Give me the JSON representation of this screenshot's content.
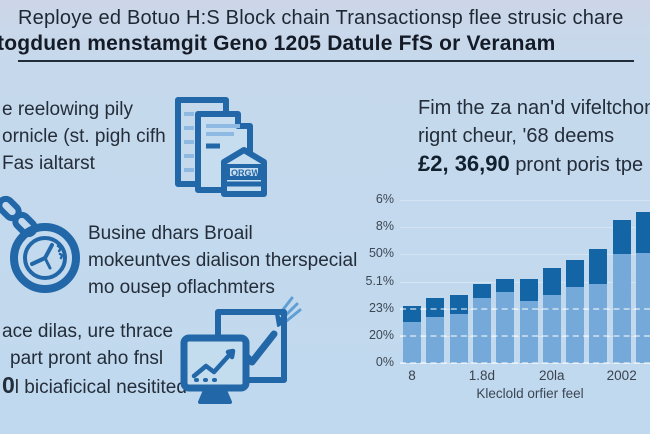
{
  "header": {
    "line1": "Reploye ed Botuo H:S Block chain Transactionsp flee strusic chare",
    "line2": "togduen menstamgit Geno 1205 Datule FfS or Veranam"
  },
  "left": {
    "block1": {
      "lines": [
        "e reelowing pily",
        "ornicle (st. pigh cifh",
        "Fas ialtarst"
      ]
    },
    "block2": {
      "lines": [
        "Busine dhars Broail",
        "mokeuntves dialison therspecial",
        "mo ousep oflachmters"
      ]
    },
    "block3": {
      "line1": "ace dilas, ure thrace",
      "line2": "part pront aho fnsl",
      "line3_bold": "0",
      "line3_rest": "l biciaficical nesitited"
    }
  },
  "right": {
    "intro": {
      "line1": "Fim the za nan'd vifeltchon",
      "line2": "rignt cheur, '68 deems",
      "amount": "£2, 36,90",
      "line3_rest": "pront poris tpe"
    }
  },
  "icons": {
    "document": "document-stack-icon",
    "document_label": "ORGW",
    "magnifier": "magnifier-clock-icon",
    "monitor": "monitor-growth-check-icon"
  },
  "colors": {
    "icon_blue": "#2267a7",
    "icon_blue_light": "#7fb0dd",
    "bar_light": "#74a9d9",
    "bar_dark": "#1465a6",
    "background": "#c0d9ee",
    "header_background": "#ccd6e8",
    "text": "#20262e"
  },
  "chart_data": {
    "type": "bar",
    "stacked": true,
    "title": "",
    "xlabel": "",
    "ylabel": "",
    "caption": "Kleclold orfier feel",
    "y_tick_labels": [
      "6%",
      "8%",
      "50%",
      "5.1%",
      "23%",
      "20%",
      "0%"
    ],
    "axis_units_max": 6,
    "grid": true,
    "legend": false,
    "x_ticks": [
      {
        "label": "8",
        "bar": 0
      },
      {
        "label": "1.8d",
        "bar": 3
      },
      {
        "label": "20la",
        "bar": 6
      },
      {
        "label": "2002",
        "bar": 9
      }
    ],
    "series": [
      {
        "name": "lower-segment",
        "color": "#74a9d9",
        "values": [
          1.5,
          1.7,
          1.8,
          2.4,
          2.6,
          2.3,
          2.5,
          2.8,
          2.9,
          4.0,
          4.05
        ]
      },
      {
        "name": "upper-segment",
        "color": "#1465a6",
        "values": [
          0.6,
          0.7,
          0.7,
          0.5,
          0.5,
          0.8,
          1.0,
          1.0,
          1.3,
          1.25,
          1.5
        ]
      }
    ]
  }
}
